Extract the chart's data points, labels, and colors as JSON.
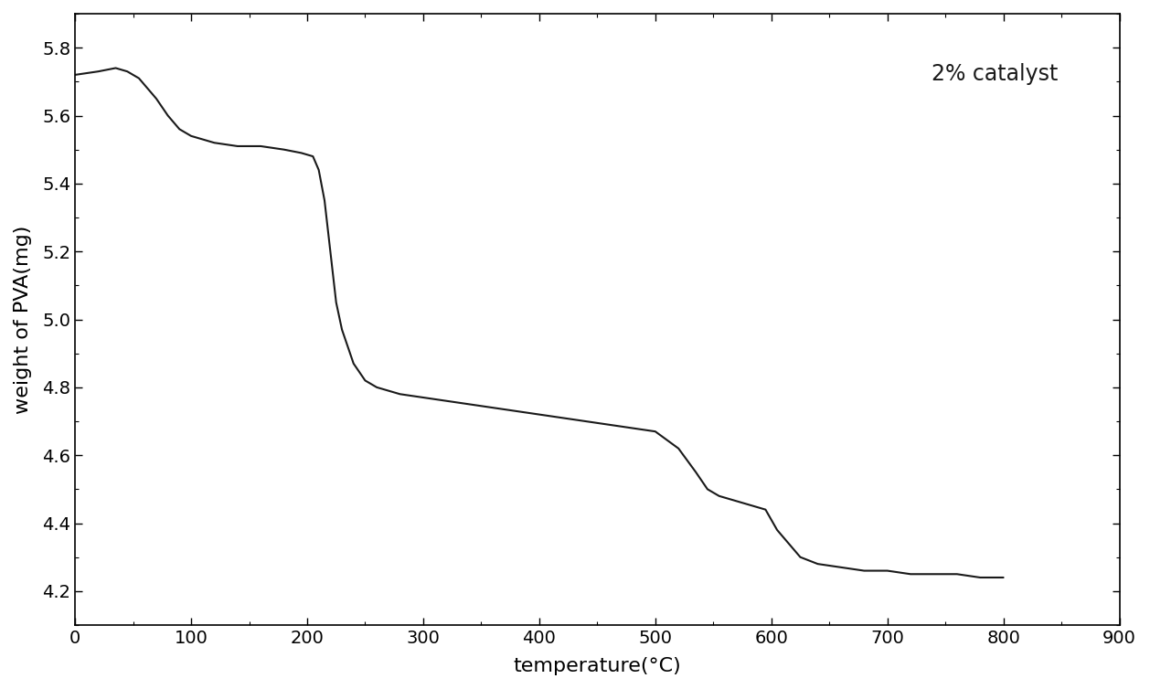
{
  "title": "",
  "annotation": "2% catalyst",
  "xlabel": "temperature(°C)",
  "ylabel": "weight of PVA(mg)",
  "xlim": [
    0,
    900
  ],
  "ylim": [
    4.1,
    5.9
  ],
  "xticks": [
    0,
    100,
    200,
    300,
    400,
    500,
    600,
    700,
    800,
    900
  ],
  "yticks": [
    4.2,
    4.4,
    4.6,
    4.8,
    5.0,
    5.2,
    5.4,
    5.6,
    5.8
  ],
  "line_color": "#1a1a1a",
  "line_width": 1.5,
  "background_color": "#ffffff",
  "x": [
    0,
    20,
    35,
    45,
    55,
    70,
    80,
    90,
    100,
    110,
    120,
    140,
    160,
    180,
    195,
    205,
    210,
    215,
    220,
    225,
    230,
    240,
    250,
    260,
    270,
    280,
    300,
    320,
    340,
    360,
    380,
    400,
    420,
    440,
    460,
    480,
    500,
    520,
    535,
    545,
    555,
    565,
    575,
    585,
    595,
    605,
    615,
    625,
    640,
    660,
    680,
    700,
    720,
    740,
    760,
    780,
    800
  ],
  "y": [
    5.72,
    5.73,
    5.74,
    5.73,
    5.71,
    5.65,
    5.6,
    5.56,
    5.54,
    5.53,
    5.52,
    5.51,
    5.51,
    5.5,
    5.49,
    5.48,
    5.44,
    5.35,
    5.2,
    5.05,
    4.97,
    4.87,
    4.82,
    4.8,
    4.79,
    4.78,
    4.77,
    4.76,
    4.75,
    4.74,
    4.73,
    4.72,
    4.71,
    4.7,
    4.69,
    4.68,
    4.67,
    4.62,
    4.55,
    4.5,
    4.48,
    4.47,
    4.46,
    4.45,
    4.44,
    4.38,
    4.34,
    4.3,
    4.28,
    4.27,
    4.26,
    4.26,
    4.25,
    4.25,
    4.25,
    4.24,
    4.24
  ]
}
